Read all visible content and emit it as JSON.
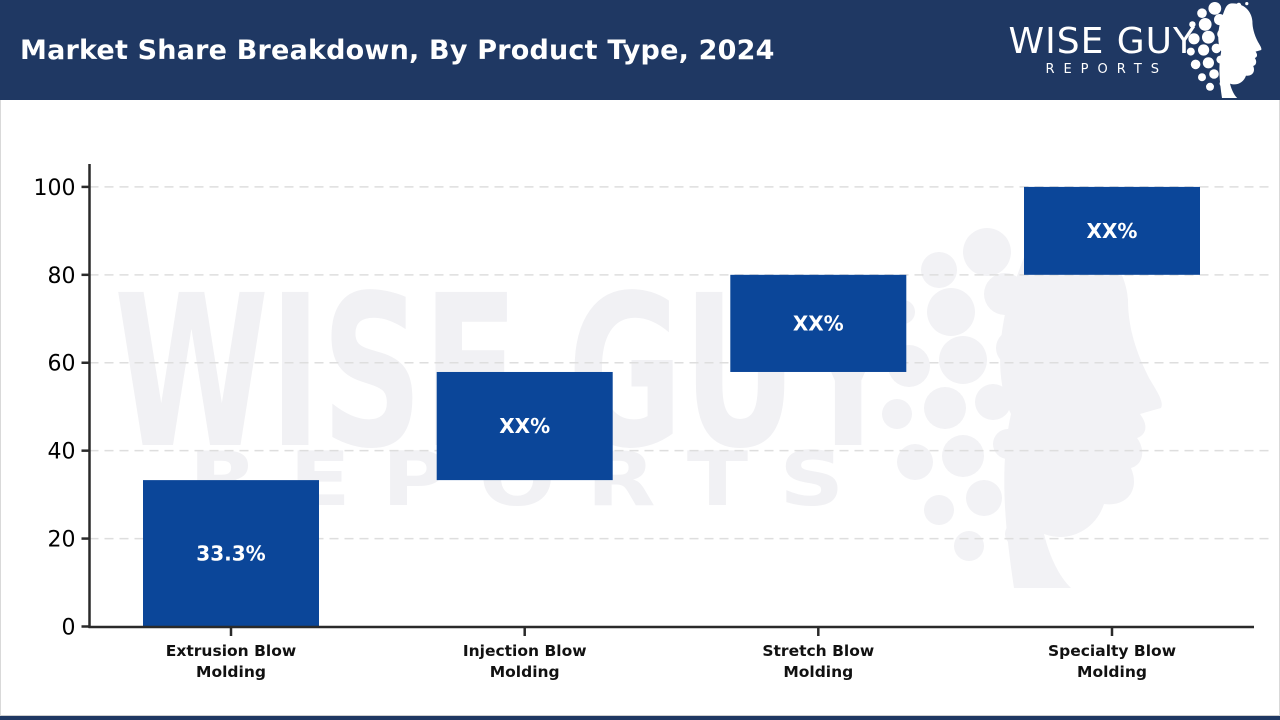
{
  "header": {
    "title": "Market Share Breakdown, By Product Type, 2024",
    "logo": {
      "name_line": "WISE GUY",
      "sub_line": "REPORTS"
    }
  },
  "watermark": {
    "name_line": "WISE GUY",
    "sub_line": "R E P O R T S"
  },
  "colors": {
    "header_bg": "#1f3863",
    "bar": "#0b4699",
    "grid": "#dedede",
    "axis": "#2a2a2a",
    "bar_label": "#ffffff",
    "tick_label": "#000000",
    "category_label": "#111111",
    "watermark": "#f1f1f4"
  },
  "chart_data": {
    "type": "bar",
    "variant": "waterfall",
    "title": "Market Share Breakdown, By Product Type, 2024",
    "xlabel": "",
    "ylabel": "",
    "ylim": [
      0,
      105
    ],
    "yticks": [
      0,
      20,
      40,
      60,
      80,
      100
    ],
    "grid": "horizontal-dashed",
    "legend": "none",
    "categories": [
      "Extrusion Blow Molding",
      "Injection Blow Molding",
      "Stretch Blow Molding",
      "Specialty Blow Molding"
    ],
    "label_lines": [
      [
        "Extrusion Blow",
        "Molding"
      ],
      [
        "Injection Blow",
        "Molding"
      ],
      [
        "Stretch Blow",
        "Molding"
      ],
      [
        "Specialty Blow",
        "Molding"
      ]
    ],
    "segments": [
      {
        "category": "Extrusion Blow Molding",
        "start": 0,
        "end": 33.3,
        "label": "33.3%"
      },
      {
        "category": "Injection Blow Molding",
        "start": 33.3,
        "end": 57.9,
        "label": "XX%"
      },
      {
        "category": "Stretch Blow Molding",
        "start": 57.9,
        "end": 80,
        "label": "XX%"
      },
      {
        "category": "Specialty Blow Molding",
        "start": 80,
        "end": 100,
        "label": "XX%"
      }
    ]
  }
}
